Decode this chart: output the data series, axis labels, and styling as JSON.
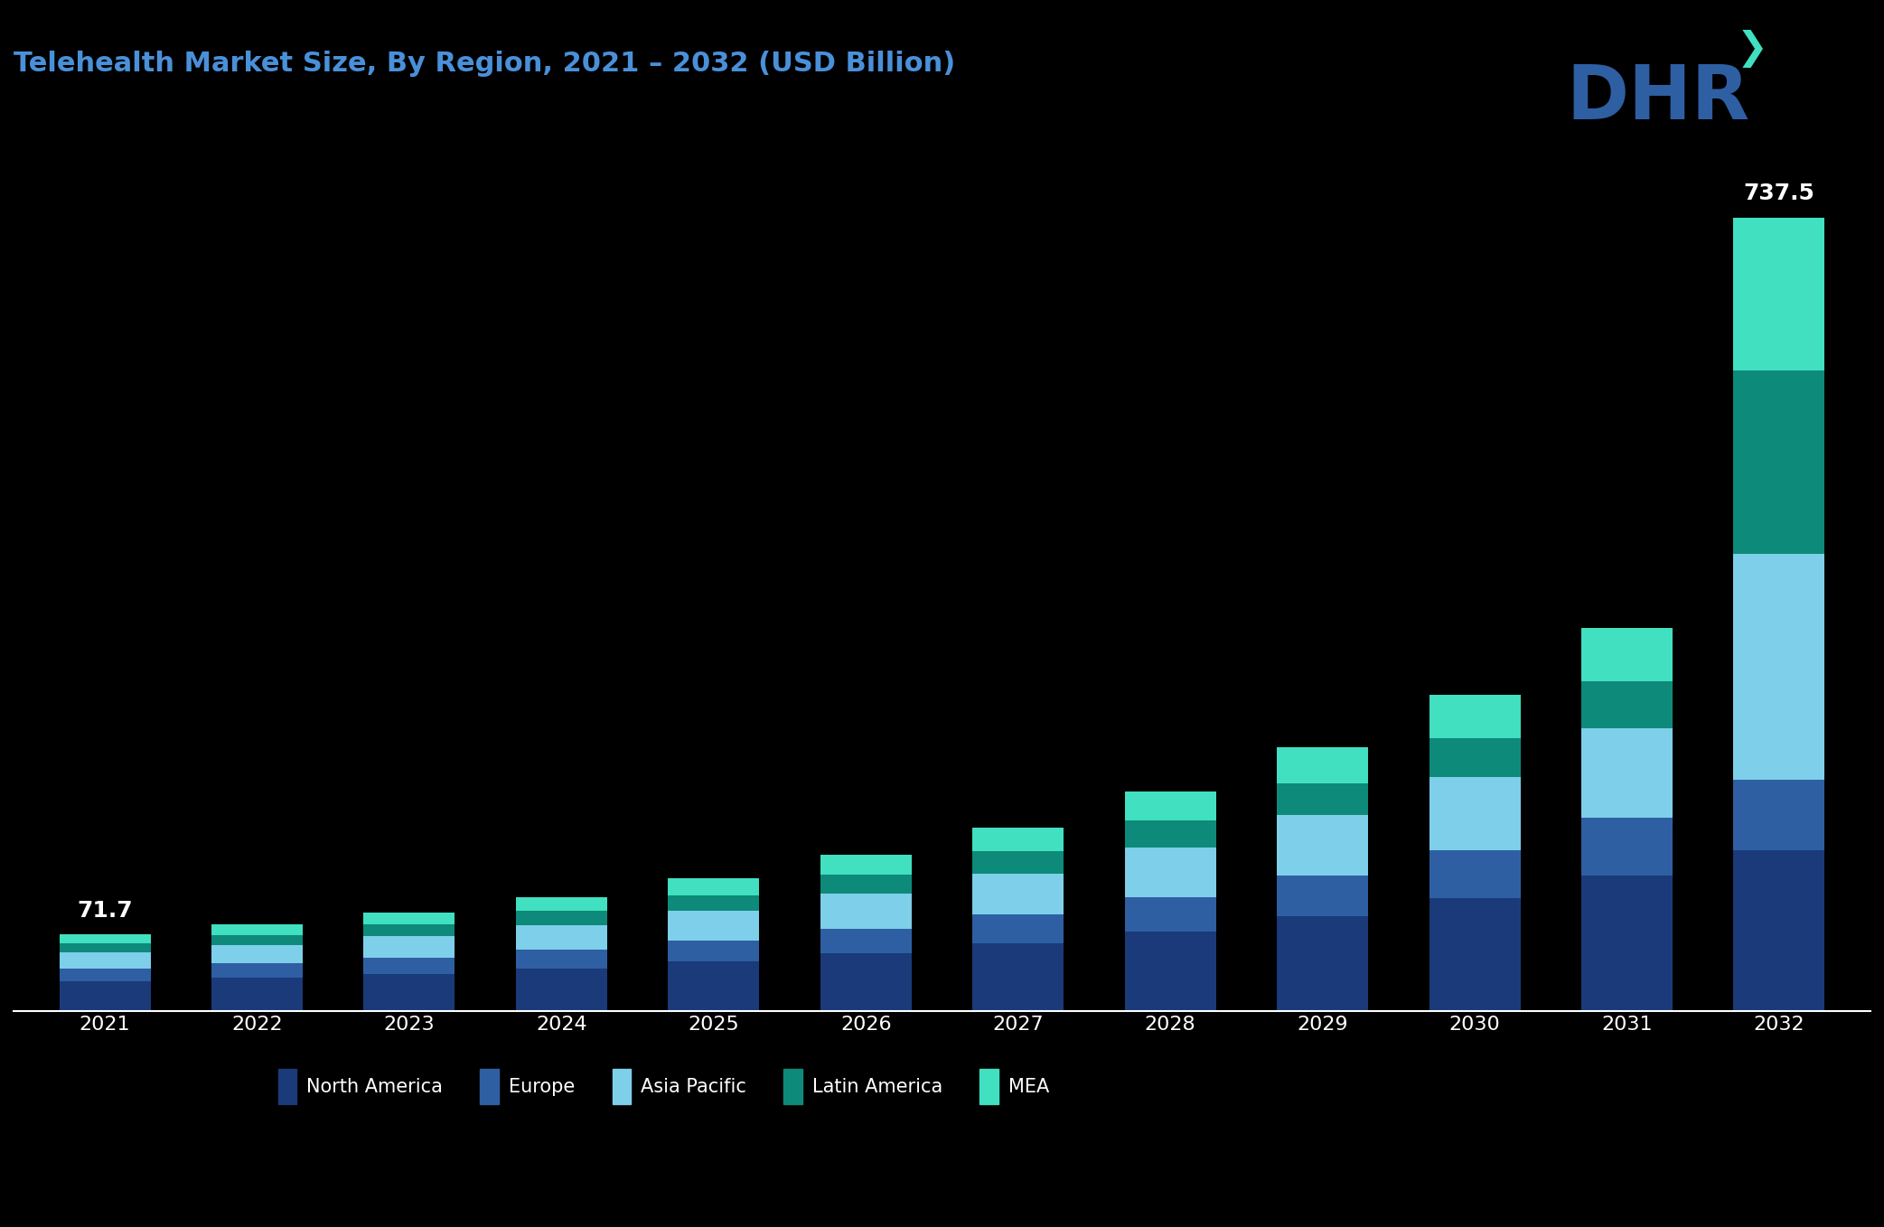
{
  "title": "Telehealth Market Size, By Region, 2021 – 2032 (USD Billion)",
  "title_color": "#4a90d9",
  "background_color": "#000000",
  "years": [
    2021,
    2022,
    2023,
    2024,
    2025,
    2026,
    2027,
    2028,
    2029,
    2030,
    2031,
    2032
  ],
  "first_bar_label": "71.7",
  "last_bar_label": "737.5",
  "colors": [
    "#1a3a7a",
    "#2e5fa3",
    "#7ecfea",
    "#0e8a7a",
    "#40e0c0"
  ],
  "legend_labels": [
    "North America",
    "Europe",
    "Asia Pacific",
    "Latin America",
    "MEA"
  ],
  "segments": [
    [
      28.0,
      12.0,
      15.0,
      8.5,
      8.2
    ],
    [
      31.0,
      13.5,
      17.0,
      9.5,
      9.5
    ],
    [
      35.0,
      15.0,
      20.0,
      11.0,
      11.0
    ],
    [
      40.0,
      17.0,
      23.0,
      13.0,
      13.0
    ],
    [
      46.0,
      20.0,
      27.0,
      15.0,
      15.5
    ],
    [
      54.0,
      23.0,
      32.0,
      18.0,
      18.5
    ],
    [
      63.0,
      27.0,
      38.0,
      21.0,
      22.0
    ],
    [
      74.0,
      32.0,
      46.0,
      25.0,
      27.0
    ],
    [
      88.0,
      38.0,
      56.0,
      30.0,
      33.0
    ],
    [
      105.0,
      45.0,
      68.0,
      36.0,
      40.0
    ],
    [
      126.0,
      54.0,
      83.0,
      44.0,
      49.0
    ],
    [
      150.0,
      65.0,
      210.0,
      170.0,
      142.5
    ]
  ],
  "bar_width": 0.6,
  "ylim": [
    0,
    850
  ],
  "spine_color": "#ffffff",
  "label_color": "#ffffff",
  "tick_color": "#ffffff"
}
